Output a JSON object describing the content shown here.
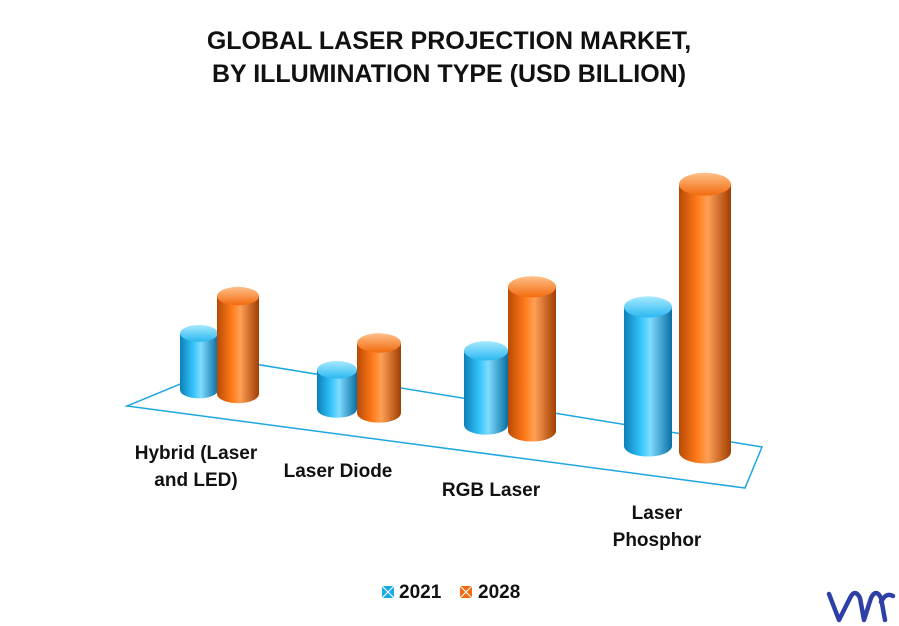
{
  "chart_data": {
    "type": "bar",
    "title_lines": [
      "GLOBAL LASER PROJECTION MARKET,",
      "BY ILLUMINATION TYPE (USD BILLION)"
    ],
    "categories": [
      [
        "Hybrid (Laser",
        "and LED)"
      ],
      [
        "Laser Diode"
      ],
      [
        "RGB Laser"
      ],
      [
        "Laser",
        "Phosphor"
      ]
    ],
    "series": [
      {
        "name": "2021",
        "values": [
          0.55,
          0.38,
          0.72,
          1.35
        ],
        "color": "#19a9e6"
      },
      {
        "name": "2028",
        "values": [
          0.95,
          0.68,
          1.4,
          2.6
        ],
        "color": "#f26a0c"
      }
    ],
    "legend_position": "bottom",
    "grid": false,
    "style": "3d-cylinder"
  },
  "branding": {
    "logo": "vmr"
  }
}
